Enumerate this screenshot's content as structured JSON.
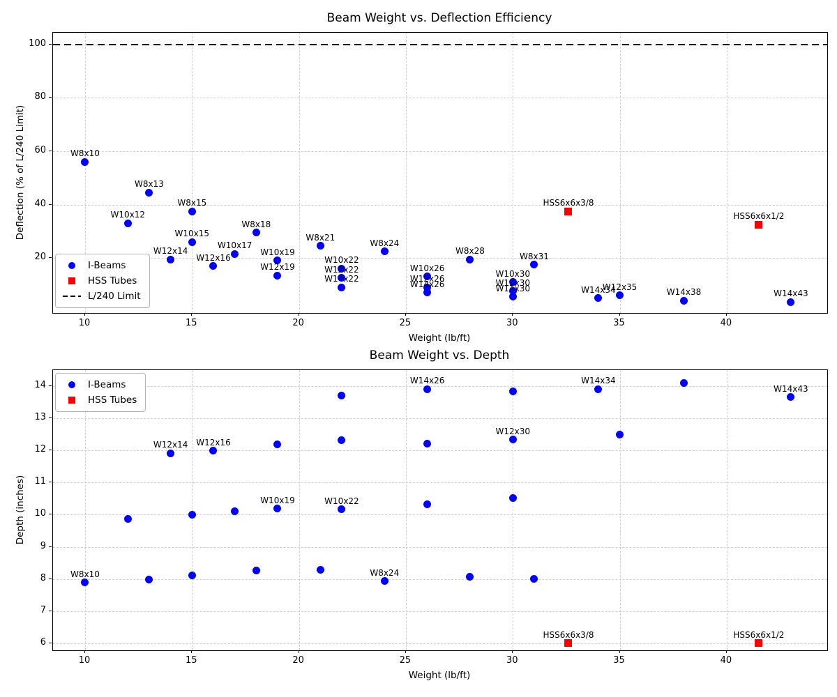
{
  "figure": {
    "background": "#ffffff"
  },
  "colors": {
    "ibeam": "#0000ff",
    "hss": "#ff0000",
    "limit_line": "#000000",
    "grid": "#cfcfcf",
    "axis": "#000000"
  },
  "chart_data": [
    {
      "type": "scatter",
      "title": "Beam Weight vs. Deflection Efficiency",
      "xlabel": "Weight (lb/ft)",
      "ylabel": "Deflection (% of L/240 Limit)",
      "xlim": [
        8.5,
        44.7
      ],
      "ylim": [
        -0.6,
        104.4
      ],
      "xticks": [
        10,
        15,
        20,
        25,
        30,
        35,
        40
      ],
      "yticks": [
        20,
        40,
        60,
        80,
        100
      ],
      "grid": true,
      "limit_line": {
        "y": 100,
        "label": "L/240 Limit"
      },
      "legend_pos": "lower-left",
      "legend": [
        {
          "label": "I-Beams",
          "marker": "circle",
          "color": "#0000ff"
        },
        {
          "label": "HSS Tubes",
          "marker": "square",
          "color": "#ff0000"
        },
        {
          "label": "L/240 Limit",
          "marker": "dash",
          "color": "#000000"
        }
      ],
      "series": [
        {
          "name": "I-Beams",
          "marker": "circle",
          "color": "#0000ff",
          "points": [
            {
              "label": "W8x10",
              "x": 10,
              "y": 56,
              "labeled": true
            },
            {
              "label": "W10x12",
              "x": 12,
              "y": 33,
              "labeled": true
            },
            {
              "label": "W8x13",
              "x": 13,
              "y": 44.5,
              "labeled": true
            },
            {
              "label": "W12x14",
              "x": 14,
              "y": 19.5,
              "labeled": true
            },
            {
              "label": "W8x15",
              "x": 15,
              "y": 37.5,
              "labeled": true
            },
            {
              "label": "W10x15",
              "x": 15,
              "y": 26,
              "labeled": true
            },
            {
              "label": "W12x16",
              "x": 16,
              "y": 17,
              "labeled": true
            },
            {
              "label": "W10x17",
              "x": 17,
              "y": 21.5,
              "labeled": true
            },
            {
              "label": "W8x18",
              "x": 18,
              "y": 29.5,
              "labeled": true
            },
            {
              "label": "W10x19",
              "x": 19,
              "y": 19,
              "labeled": true
            },
            {
              "label": "W12x19",
              "x": 19,
              "y": 13.5,
              "labeled": true
            },
            {
              "label": "W8x21",
              "x": 21,
              "y": 24.5,
              "labeled": true
            },
            {
              "label": "W10x22",
              "x": 22,
              "y": 16,
              "labeled": true
            },
            {
              "label": "W12x22",
              "x": 22,
              "y": 12.5,
              "labeled": true
            },
            {
              "label": "W14x22",
              "x": 22,
              "y": 9,
              "labeled": true
            },
            {
              "label": "W8x24",
              "x": 24,
              "y": 22.5,
              "labeled": true
            },
            {
              "label": "W10x26",
              "x": 26,
              "y": 13,
              "labeled": true
            },
            {
              "label": "W12x26",
              "x": 26,
              "y": 9,
              "labeled": true
            },
            {
              "label": "W14x26",
              "x": 26,
              "y": 7,
              "labeled": true
            },
            {
              "label": "W8x28",
              "x": 28,
              "y": 19.5,
              "labeled": true
            },
            {
              "label": "W10x30",
              "x": 30,
              "y": 11,
              "labeled": true
            },
            {
              "label": "W12x30",
              "x": 30,
              "y": 7.5,
              "labeled": true
            },
            {
              "label": "W14x30",
              "x": 30,
              "y": 5.5,
              "labeled": true
            },
            {
              "label": "W8x31",
              "x": 31,
              "y": 17.5,
              "labeled": true
            },
            {
              "label": "W14x34",
              "x": 34,
              "y": 5,
              "labeled": true
            },
            {
              "label": "W12x35",
              "x": 35,
              "y": 6,
              "labeled": true
            },
            {
              "label": "W14x38",
              "x": 38,
              "y": 4,
              "labeled": true
            },
            {
              "label": "W14x43",
              "x": 43,
              "y": 3.5,
              "labeled": true
            }
          ]
        },
        {
          "name": "HSS Tubes",
          "marker": "square",
          "color": "#ff0000",
          "points": [
            {
              "label": "HSS6x6x3/8",
              "x": 32.6,
              "y": 37.5,
              "labeled": true
            },
            {
              "label": "HSS6x6x1/2",
              "x": 41.5,
              "y": 32.5,
              "labeled": true
            }
          ]
        }
      ]
    },
    {
      "type": "scatter",
      "title": "Beam Weight vs. Depth",
      "xlabel": "Weight (lb/ft)",
      "ylabel": "Depth (inches)",
      "xlim": [
        8.5,
        44.7
      ],
      "ylim": [
        5.78,
        14.5
      ],
      "xticks": [
        10,
        15,
        20,
        25,
        30,
        35,
        40
      ],
      "yticks": [
        6,
        7,
        8,
        9,
        10,
        11,
        12,
        13,
        14
      ],
      "grid": true,
      "limit_line": null,
      "legend_pos": "upper-left",
      "legend": [
        {
          "label": "I-Beams",
          "marker": "circle",
          "color": "#0000ff"
        },
        {
          "label": "HSS Tubes",
          "marker": "square",
          "color": "#ff0000"
        }
      ],
      "series": [
        {
          "name": "I-Beams",
          "marker": "circle",
          "color": "#0000ff",
          "points": [
            {
              "label": "W8x10",
              "x": 10,
              "y": 7.89,
              "labeled": true
            },
            {
              "label": "W10x12",
              "x": 12,
              "y": 9.87,
              "labeled": false
            },
            {
              "label": "W8x13",
              "x": 13,
              "y": 7.99,
              "labeled": false
            },
            {
              "label": "W12x14",
              "x": 14,
              "y": 11.91,
              "labeled": true
            },
            {
              "label": "W8x15",
              "x": 15,
              "y": 8.11,
              "labeled": false
            },
            {
              "label": "W10x15",
              "x": 15,
              "y": 9.99,
              "labeled": false
            },
            {
              "label": "W12x16",
              "x": 16,
              "y": 11.99,
              "labeled": true
            },
            {
              "label": "W10x17",
              "x": 17,
              "y": 10.11,
              "labeled": false
            },
            {
              "label": "W8x18",
              "x": 18,
              "y": 8.26,
              "labeled": false
            },
            {
              "label": "W10x19",
              "x": 19,
              "y": 10.19,
              "labeled": true
            },
            {
              "label": "W12x19",
              "x": 19,
              "y": 12.19,
              "labeled": false
            },
            {
              "label": "W8x21",
              "x": 21,
              "y": 8.28,
              "labeled": false
            },
            {
              "label": "W10x22",
              "x": 22,
              "y": 10.17,
              "labeled": true
            },
            {
              "label": "W12x22",
              "x": 22,
              "y": 12.31,
              "labeled": false
            },
            {
              "label": "W14x22",
              "x": 22,
              "y": 13.7,
              "labeled": false
            },
            {
              "label": "W8x24",
              "x": 24,
              "y": 7.93,
              "labeled": true
            },
            {
              "label": "W10x26",
              "x": 26,
              "y": 10.33,
              "labeled": false
            },
            {
              "label": "W12x26",
              "x": 26,
              "y": 12.22,
              "labeled": false
            },
            {
              "label": "W14x26",
              "x": 26,
              "y": 13.91,
              "labeled": true
            },
            {
              "label": "W8x28",
              "x": 28,
              "y": 8.06,
              "labeled": false
            },
            {
              "label": "W10x30",
              "x": 30,
              "y": 10.51,
              "labeled": false
            },
            {
              "label": "W12x30",
              "x": 30,
              "y": 12.34,
              "labeled": true
            },
            {
              "label": "W14x30",
              "x": 30,
              "y": 13.84,
              "labeled": false
            },
            {
              "label": "W8x31",
              "x": 31,
              "y": 8.0,
              "labeled": false
            },
            {
              "label": "W14x34",
              "x": 34,
              "y": 13.91,
              "labeled": true
            },
            {
              "label": "W12x35",
              "x": 35,
              "y": 12.5,
              "labeled": false
            },
            {
              "label": "W14x38",
              "x": 38,
              "y": 14.1,
              "labeled": false
            },
            {
              "label": "W14x43",
              "x": 43,
              "y": 13.66,
              "labeled": true
            }
          ]
        },
        {
          "name": "HSS Tubes",
          "marker": "square",
          "color": "#ff0000",
          "points": [
            {
              "label": "HSS6x6x3/8",
              "x": 32.6,
              "y": 6.0,
              "labeled": true
            },
            {
              "label": "HSS6x6x1/2",
              "x": 41.5,
              "y": 6.0,
              "labeled": true
            }
          ]
        }
      ]
    }
  ]
}
